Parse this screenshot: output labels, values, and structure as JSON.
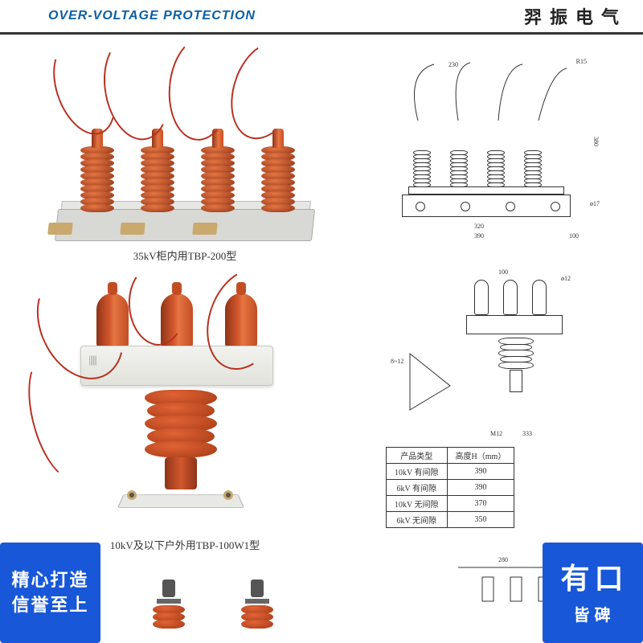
{
  "header": {
    "title": "OVER-VOLTAGE PROTECTION",
    "brand": "羿振电气",
    "title_color": "#0b5fa5",
    "divider_color": "#333333"
  },
  "colors": {
    "arrester_orange": "#c94f24",
    "arrester_highlight": "#e57542",
    "arrester_dark": "#8e3418",
    "base_gray": "#d8d8d4",
    "lead_red": "#b83020",
    "brass": "#c9a96e",
    "badge_blue": "#1858d8"
  },
  "product1": {
    "caption": "35kV柜内用TBP-200型",
    "arrester_count": 4,
    "shed_count": 10
  },
  "product2": {
    "caption": "10kV及以下户外用TBP-100W1型",
    "top_insulator_count": 3,
    "big_shed_count": 5
  },
  "diagram1": {
    "dims": {
      "w_total": "320",
      "h_total": "380",
      "w_top": "230",
      "r15": "R15",
      "d17": "ø17",
      "base_w": "390",
      "base_d": "100"
    }
  },
  "diagram2": {
    "dims": {
      "spacing": "100",
      "d12": "ø12",
      "M12": "M12",
      "angle": "8~12",
      "width": "333"
    },
    "table": {
      "headers": [
        "产品类型",
        "高度H（mm）"
      ],
      "rows": [
        [
          "10kV 有间隙",
          "390"
        ],
        [
          "6kV 有间隙",
          "390"
        ],
        [
          "10kV 无间隙",
          "370"
        ],
        [
          "6kV 无间隙",
          "350"
        ]
      ]
    }
  },
  "diagram3": {
    "dim": "280"
  },
  "badges": {
    "left": {
      "line1": "精心打造",
      "line2": "信誉至上"
    },
    "right": {
      "big": "有口",
      "small": "皆碑"
    }
  }
}
